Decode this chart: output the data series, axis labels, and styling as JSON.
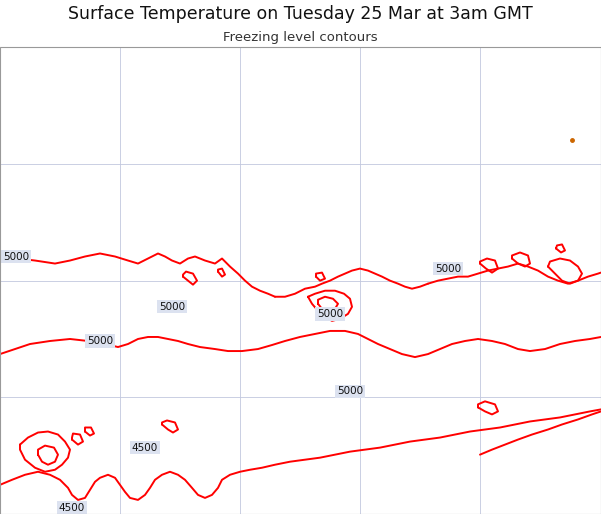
{
  "title": "Surface Temperature on Tuesday 25 Mar at 3am GMT",
  "subtitle": "Freezing level contours",
  "bg_color": "#dce2f0",
  "contour_color": "#ff0000",
  "label_color": "#111111",
  "contour_linewidth": 1.4,
  "title_fontsize": 12.5,
  "subtitle_fontsize": 9.5,
  "fig_width": 6.01,
  "fig_height": 5.14,
  "dpi": 100,
  "grid_color": "#c2c8de",
  "grid_linewidth": 0.6,
  "label_fontsize": 7.5
}
